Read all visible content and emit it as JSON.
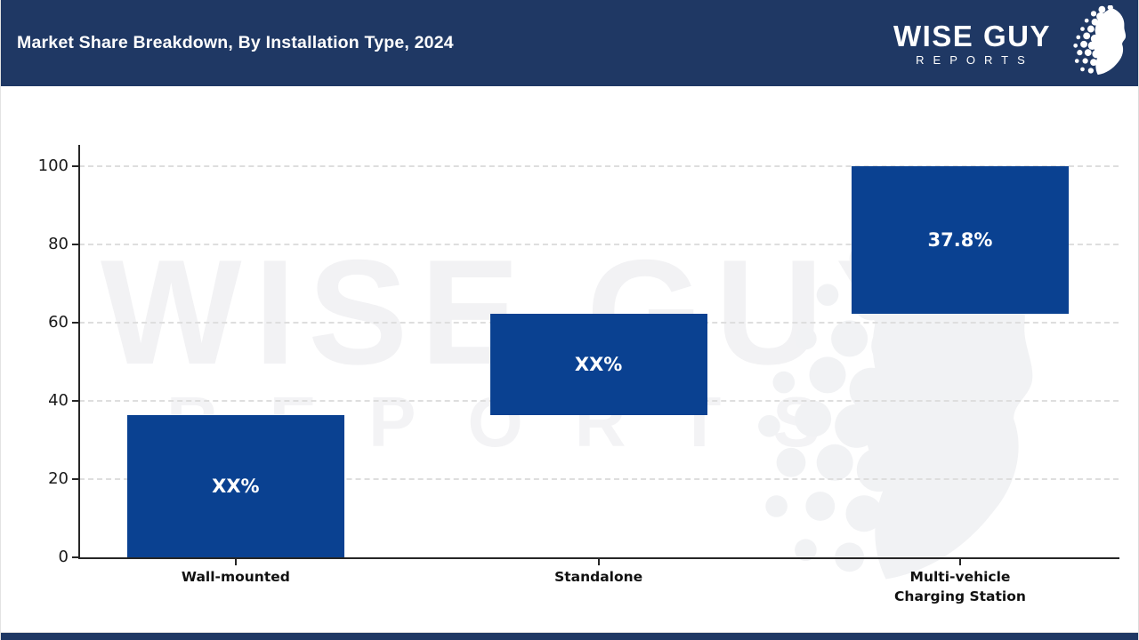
{
  "header": {
    "title": "Market Share Breakdown, By Installation Type, 2024",
    "bg_color": "#1f3864",
    "logo": {
      "wordmark": "WISE GUY",
      "subtitle": "REPORTS"
    }
  },
  "watermark": {
    "wordmark": "WISE GUY",
    "subtitle": "REPORTS"
  },
  "chart_data": {
    "type": "bar",
    "subtype": "floating-waterfall",
    "title": "Market Share Breakdown, By Installation Type, 2024",
    "categories": [
      "Wall-mounted",
      "Standalone",
      "Multi-vehicle Charging Station"
    ],
    "bars": [
      {
        "category": "Wall-mounted",
        "start": 0,
        "end": 36.4,
        "value_label": "XX%"
      },
      {
        "category": "Standalone",
        "start": 36.4,
        "end": 62.2,
        "value_label": "XX%"
      },
      {
        "category": "Multi-vehicle Charging Station",
        "start": 62.2,
        "end": 100,
        "value_label": "37.8%"
      }
    ],
    "xlabel": "",
    "ylabel": "",
    "ylim": [
      0,
      105
    ],
    "yticks": [
      0,
      20,
      40,
      60,
      80,
      100
    ],
    "grid": "dashed-horizontal",
    "legend": "none",
    "bar_color": "#0a4191",
    "bar_label_color": "#ffffff",
    "axis_color": "#262626",
    "gridline_color": "#dedede"
  }
}
